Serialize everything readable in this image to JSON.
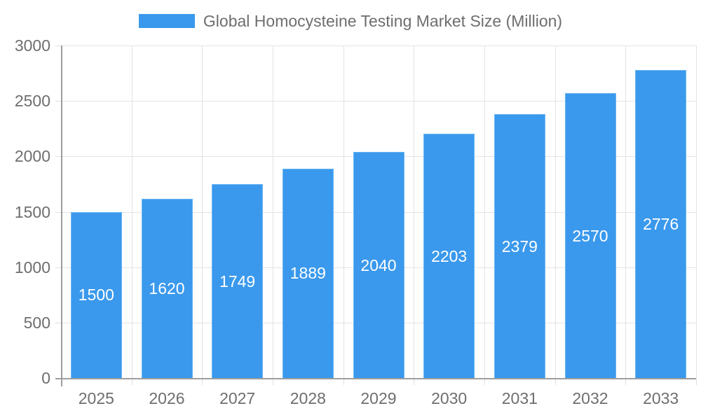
{
  "chart_data": {
    "type": "bar",
    "title": "",
    "legend": "Global Homocysteine Testing Market Size (Million)",
    "legend_position": "top",
    "categories": [
      "2025",
      "2026",
      "2027",
      "2028",
      "2029",
      "2030",
      "2031",
      "2032",
      "2033"
    ],
    "series": [
      {
        "name": "Global Homocysteine Testing Market Size (Million)",
        "values": [
          1500,
          1620,
          1749,
          1889,
          2040,
          2203,
          2379,
          2570,
          2776
        ]
      }
    ],
    "xlabel": "",
    "ylabel": "",
    "ylim": [
      0,
      3000
    ],
    "yticks": [
      0,
      500,
      1000,
      1500,
      2000,
      2500,
      3000
    ],
    "grid": true,
    "value_labels": "centered-inside-bars",
    "colors": {
      "bar": "#3a99ec",
      "bar_border": "#6cb6f1",
      "value_label": "#ffffff",
      "axis_text": "#6e6e6e",
      "legend_text": "#6e6e6e",
      "gridline": "#e3e3e3",
      "axis_line": "#9e9e9e",
      "background": "#ffffff"
    }
  }
}
